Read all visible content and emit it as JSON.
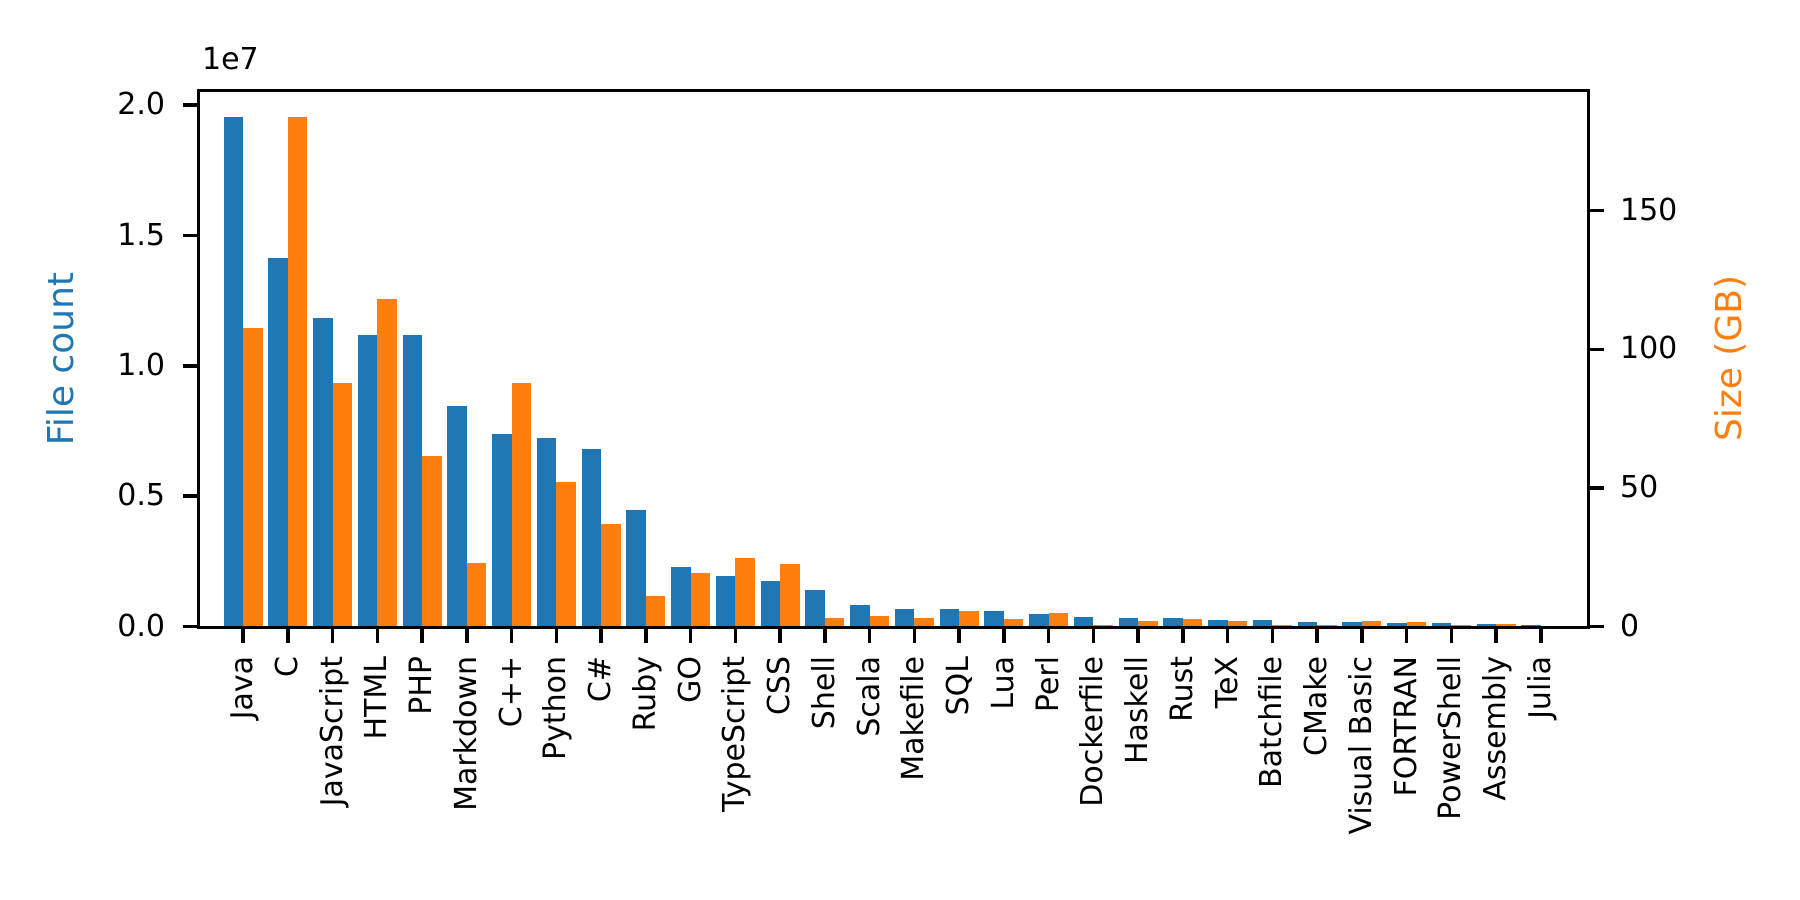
{
  "figure": {
    "background": "#ffffff",
    "spine_color": "#000000",
    "text_color": "#000000"
  },
  "chart_data": {
    "type": "bar",
    "title": "",
    "legend": "none",
    "grid": false,
    "x_tick_rotation": 90,
    "categories": [
      "Java",
      "C",
      "JavaScript",
      "HTML",
      "PHP",
      "Markdown",
      "C++",
      "Python",
      "C#",
      "Ruby",
      "GO",
      "TypeScript",
      "CSS",
      "Shell",
      "Scala",
      "Makefile",
      "SQL",
      "Lua",
      "Perl",
      "Dockerfile",
      "Haskell",
      "Rust",
      "TeX",
      "Batchfile",
      "CMake",
      "Visual Basic",
      "FORTRAN",
      "PowerShell",
      "Assembly",
      "Julia"
    ],
    "series": [
      {
        "name": "File count",
        "axis": "left",
        "color": "#1f77b4",
        "values": [
          19548190,
          14143113,
          11839883,
          11178557,
          11177610,
          8464626,
          7380520,
          7226626,
          6811652,
          4473331,
          2265436,
          1940406,
          1734406,
          1385648,
          835755,
          679430,
          656671,
          578554,
          497949,
          366505,
          340623,
          322431,
          251015,
          236945,
          175282,
          155652,
          142038,
          136846,
          82905,
          58317
        ]
      },
      {
        "name": "Size (GB)",
        "axis": "right",
        "color": "#ff7f0e",
        "values": [
          107.7,
          183.83,
          87.82,
          118.12,
          61.41,
          23.09,
          87.73,
          52.03,
          36.83,
          10.95,
          19.28,
          24.59,
          22.67,
          3.01,
          3.87,
          2.92,
          5.67,
          2.81,
          4.7,
          0.71,
          1.85,
          2.68,
          2.15,
          0.7,
          0.54,
          1.91,
          1.62,
          0.69,
          0.78,
          0.29
        ]
      }
    ],
    "left_axis": {
      "label": "File count",
      "color": "#1f77b4",
      "offset_text": "1e7",
      "ticks": [
        0,
        5000000,
        10000000,
        15000000,
        20000000
      ],
      "tick_labels": [
        "0.0",
        "0.5",
        "1.0",
        "1.5",
        "2.0"
      ],
      "ylim": [
        0,
        20525600
      ]
    },
    "right_axis": {
      "label": "Size (GB)",
      "color": "#ff7f0e",
      "ticks": [
        0,
        50,
        100,
        150
      ],
      "tick_labels": [
        "0",
        "50",
        "100",
        "150"
      ],
      "ylim": [
        0,
        193.02
      ]
    }
  }
}
